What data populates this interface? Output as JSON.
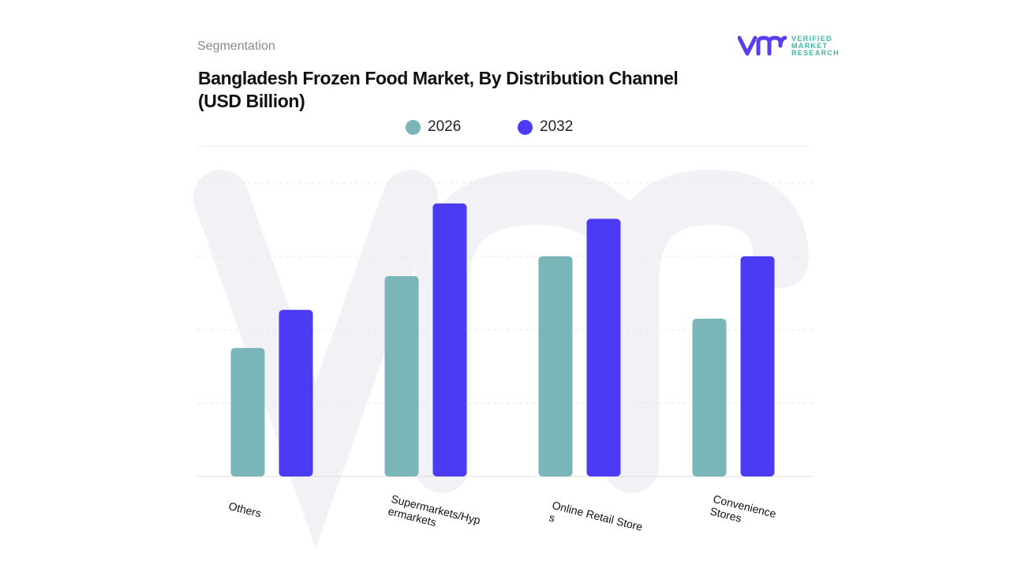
{
  "header": {
    "section": "Segmentation",
    "title_line1": "Bangladesh Frozen Food Market, By Distribution Channel",
    "title_line2": "(USD Billion)"
  },
  "logo": {
    "text_lines": [
      "VERIFIED",
      "MARKET",
      "RESEARCH"
    ],
    "color_mark": "#5b3cf0",
    "color_text": "#3fb6a8"
  },
  "chart_data": {
    "type": "bar",
    "title": "Bangladesh Frozen Food Market, By Distribution Channel (USD Billion)",
    "categories": [
      "Others",
      "Supermarkets/Hypermarkets",
      "Online Retail Stores",
      "Convenience Stores"
    ],
    "series": [
      {
        "name": "2026",
        "color": "#7ab5b8",
        "values": [
          1.75,
          2.73,
          3.0,
          2.15
        ]
      },
      {
        "name": "2032",
        "color": "#4b3bf5",
        "values": [
          2.27,
          3.72,
          3.51,
          3.0
        ]
      }
    ],
    "ylim": [
      0,
      4.03
    ],
    "grid": true,
    "legend": "top-center",
    "y_tick_labels_shown": false
  }
}
